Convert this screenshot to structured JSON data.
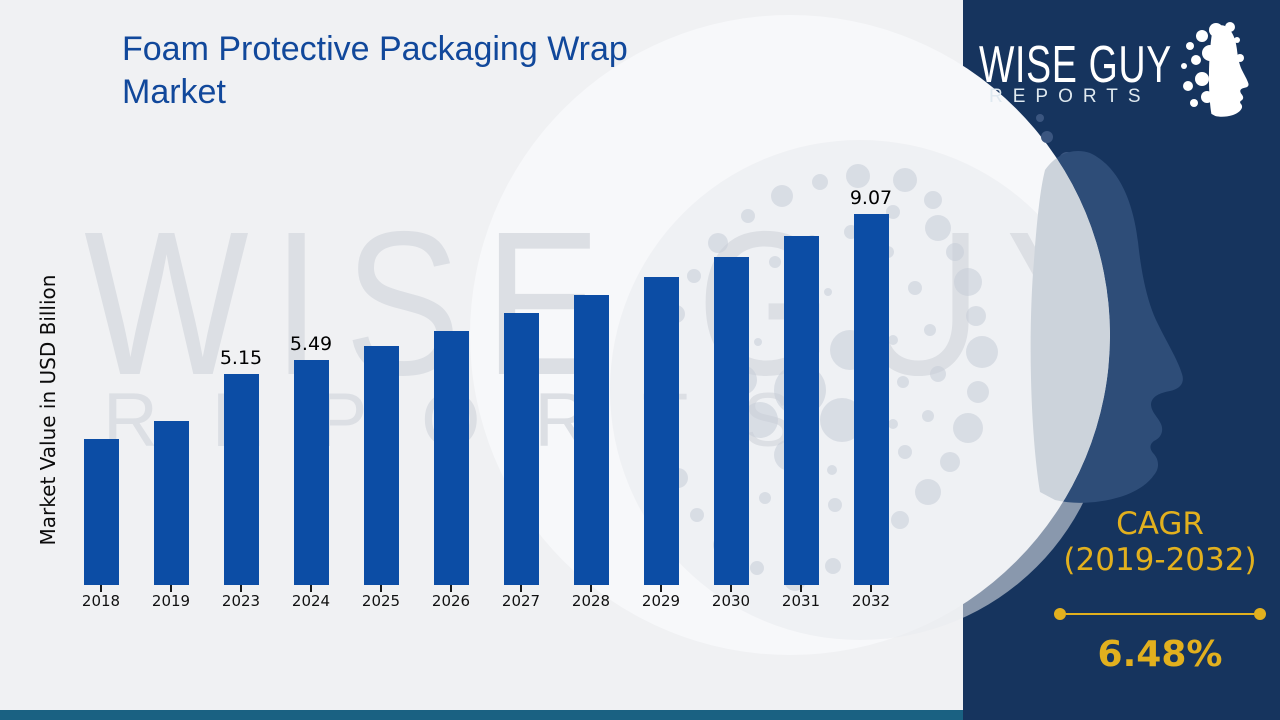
{
  "title": "Foam Protective Packaging Wrap Market",
  "y_axis_label": "Market Value in USD Billion",
  "logo": {
    "name": "WISE GUY",
    "sub": "REPORTS"
  },
  "watermark": {
    "name": "WISE GUY",
    "sub": "REPORTS"
  },
  "cagr": {
    "heading": "CAGR",
    "range": "(2019-2032)",
    "value": "6.48%"
  },
  "chart_data": {
    "type": "bar",
    "title": "Foam Protective Packaging Wrap Market",
    "xlabel": "",
    "ylabel": "Market Value in USD Billion",
    "categories": [
      "2018",
      "2019",
      "2023",
      "2024",
      "2025",
      "2026",
      "2027",
      "2028",
      "2029",
      "2030",
      "2031",
      "2032"
    ],
    "values": [
      3.57,
      4.01,
      5.15,
      5.49,
      5.84,
      6.22,
      6.64,
      7.08,
      7.52,
      8.01,
      8.53,
      9.07
    ],
    "data_labels": [
      "",
      "",
      "5.15",
      "5.49",
      "",
      "",
      "",
      "",
      "",
      "",
      "",
      "9.07"
    ],
    "ylim": [
      0,
      9.6
    ],
    "grid": false,
    "legend": false,
    "bar_color": "#0c4da5",
    "label_color": "#000000"
  },
  "colors": {
    "background": "#f0f1f3",
    "panel_navy": "#16345e",
    "bar_blue": "#0c4da5",
    "title_blue": "#11489b",
    "gold": "#e2b01e",
    "footer_teal": "#1a6182",
    "watermark_gray": "#dcdfe4"
  }
}
